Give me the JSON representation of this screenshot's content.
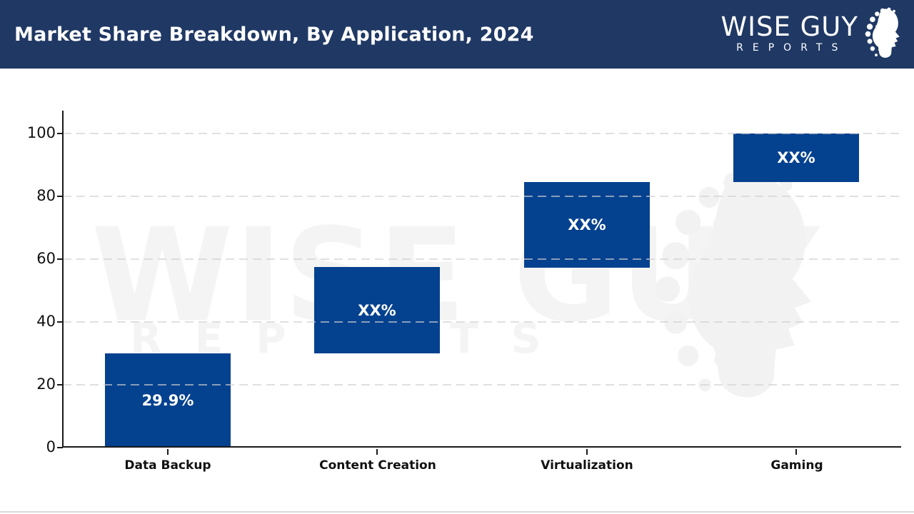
{
  "header": {
    "title": "Market Share Breakdown, By Application, 2024",
    "bg_color": "#1f3864"
  },
  "logo": {
    "line1": "WISE GUY",
    "line2": "REPORTS",
    "icon": "dotted-head-profile-icon"
  },
  "watermark": {
    "line1": "WISE GUY",
    "line2": "REPORTS",
    "icon": "dotted-head-profile-icon"
  },
  "chart_data": {
    "type": "bar",
    "subtype": "waterfall",
    "title": "Market Share Breakdown, By Application, 2024",
    "categories": [
      "Data Backup",
      "Content Creation",
      "Virtualization",
      "Gaming"
    ],
    "segments": [
      {
        "category": "Data Backup",
        "start": 0,
        "end": 29.9,
        "label": "29.9%"
      },
      {
        "category": "Content Creation",
        "start": 29.9,
        "end": 57.4,
        "label": "XX%"
      },
      {
        "category": "Virtualization",
        "start": 57.4,
        "end": 84.6,
        "label": "XX%"
      },
      {
        "category": "Gaming",
        "start": 84.6,
        "end": 100,
        "label": "XX%"
      }
    ],
    "xlabel": "",
    "ylabel": "",
    "yticks": [
      0,
      20,
      40,
      60,
      80,
      100
    ],
    "ylim": [
      0,
      107
    ],
    "bar_color": "#04418f",
    "bar_label_color": "#ffffff",
    "grid": "horizontal-dashed",
    "legend_position": "none"
  }
}
